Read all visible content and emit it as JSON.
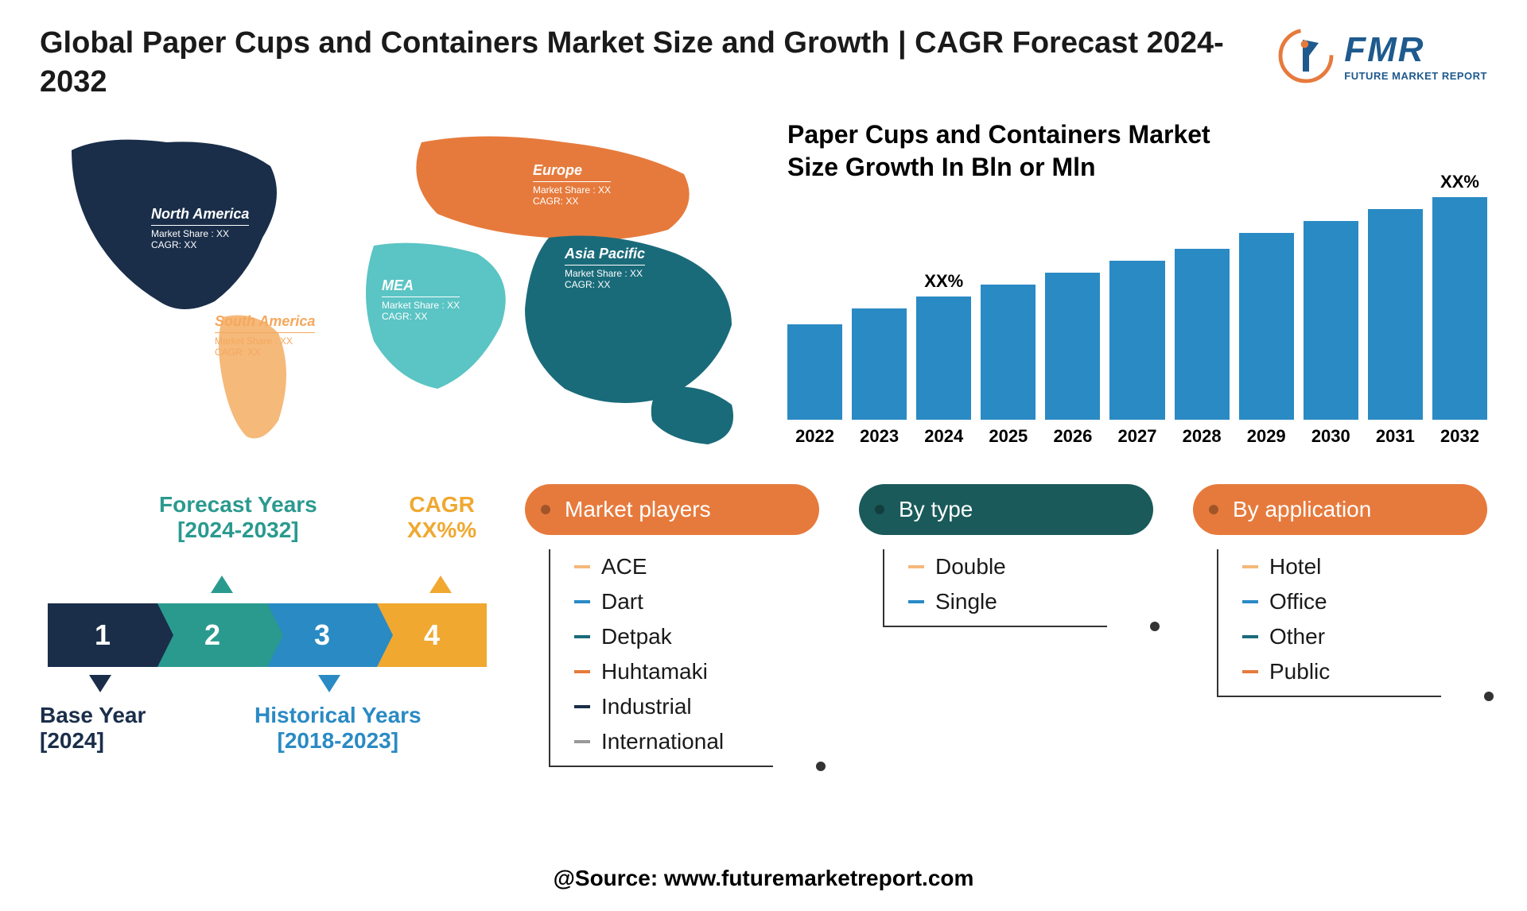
{
  "title": "Global Paper Cups and Containers  Market Size and Growth | CAGR Forecast 2024-2032",
  "logo": {
    "main": "FMR",
    "sub": "FUTURE MARKET REPORT"
  },
  "colors": {
    "na": "#1a2e4a",
    "sa": "#f5b97a",
    "eu": "#e67a3c",
    "mea": "#5bc4c4",
    "ap": "#1a6b7a",
    "bar": "#2a8ac4",
    "tl1": "#1a2e4a",
    "tl2": "#2a9a8f",
    "tl3": "#2a8ac4",
    "tl4": "#f0a830",
    "pill_players": "#e67a3c",
    "pill_type": "#1a5a5a",
    "pill_app": "#e67a3c",
    "tick1": "#f5b97a",
    "tick2": "#2a8ac4",
    "tick3": "#1a6b7a",
    "tick4": "#e67a3c",
    "tick5": "#1a2e4a",
    "tick6": "#999"
  },
  "map": {
    "regions": [
      {
        "key": "na",
        "name": "North America",
        "share": "Market Share : XX",
        "cagr": "CAGR: XX"
      },
      {
        "key": "sa",
        "name": "South America",
        "share": "Market Share : XX",
        "cagr": "CAGR: XX"
      },
      {
        "key": "eu",
        "name": "Europe",
        "share": "Market Share : XX",
        "cagr": "CAGR: XX"
      },
      {
        "key": "mea",
        "name": "MEA",
        "share": "Market Share : XX",
        "cagr": "CAGR: XX"
      },
      {
        "key": "ap",
        "name": "Asia Pacific",
        "share": "Market Share : XX",
        "cagr": "CAGR: XX"
      }
    ]
  },
  "chart": {
    "title": "Paper Cups and Containers Market Size Growth In Bln or Mln",
    "max_height": 280,
    "bars": [
      {
        "year": "2022",
        "value": 120,
        "label": ""
      },
      {
        "year": "2023",
        "value": 140,
        "label": ""
      },
      {
        "year": "2024",
        "value": 155,
        "label": "XX%"
      },
      {
        "year": "2025",
        "value": 170,
        "label": ""
      },
      {
        "year": "2026",
        "value": 185,
        "label": ""
      },
      {
        "year": "2027",
        "value": 200,
        "label": ""
      },
      {
        "year": "2028",
        "value": 215,
        "label": ""
      },
      {
        "year": "2029",
        "value": 235,
        "label": ""
      },
      {
        "year": "2030",
        "value": 250,
        "label": ""
      },
      {
        "year": "2031",
        "value": 265,
        "label": ""
      },
      {
        "year": "2032",
        "value": 280,
        "label": "XX%"
      }
    ]
  },
  "timeline": {
    "forecast": {
      "label": "Forecast Years",
      "range": "[2024-2032]"
    },
    "cagr": {
      "label": "CAGR",
      "value": "XX%%"
    },
    "base": {
      "label": "Base Year",
      "range": "[2024]"
    },
    "historical": {
      "label": "Historical Years",
      "range": "[2018-2023]"
    },
    "segs": [
      "1",
      "2",
      "3",
      "4"
    ]
  },
  "pills": [
    {
      "key": "players",
      "title": "Market players",
      "color_key": "pill_players",
      "items": [
        {
          "t": "ACE",
          "c": "tick1"
        },
        {
          "t": "Dart",
          "c": "tick2"
        },
        {
          "t": "Detpak",
          "c": "tick3"
        },
        {
          "t": "Huhtamaki",
          "c": "tick4"
        },
        {
          "t": "Industrial",
          "c": "tick5"
        },
        {
          "t": "International",
          "c": "tick6"
        }
      ]
    },
    {
      "key": "type",
      "title": "By type",
      "color_key": "pill_type",
      "items": [
        {
          "t": "Double",
          "c": "tick1"
        },
        {
          "t": "Single",
          "c": "tick2"
        }
      ]
    },
    {
      "key": "app",
      "title": "By application",
      "color_key": "pill_app",
      "items": [
        {
          "t": "Hotel",
          "c": "tick1"
        },
        {
          "t": "Office",
          "c": "tick2"
        },
        {
          "t": "Other",
          "c": "tick3"
        },
        {
          "t": "Public",
          "c": "tick4"
        }
      ]
    }
  ],
  "source": "@Source: www.futuremarketreport.com"
}
